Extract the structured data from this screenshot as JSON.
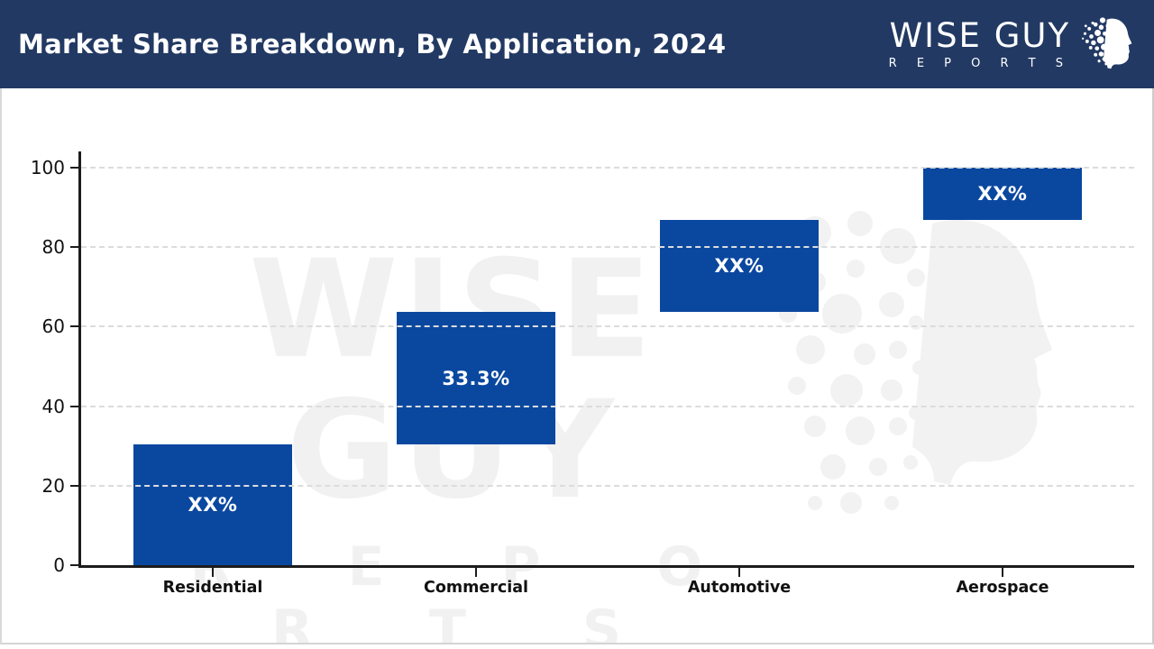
{
  "header": {
    "title": "Market Share Breakdown, By Application, 2024",
    "logo": {
      "line1": "WISE GUY",
      "line2": "R E P O R T S"
    }
  },
  "watermark": {
    "line1": "WISE GUY",
    "line2": "R E P O R T S"
  },
  "colors": {
    "header_bg": "#223963",
    "bar_fill": "#0a48a0",
    "bar_label_text": "#ffffff",
    "grid_line": "#dcdcdc",
    "axis_line": "#1c1c1c",
    "watermark": "#f1f1f1"
  },
  "chart_data": {
    "type": "bar",
    "subtype": "floating-waterfall",
    "title": "Market Share Breakdown, By Application, 2024",
    "categories": [
      "Residential",
      "Commercial",
      "Automotive",
      "Aerospace"
    ],
    "segments": [
      {
        "category": "Residential",
        "start": 0,
        "end": 30.4,
        "label": "XX%"
      },
      {
        "category": "Commercial",
        "start": 30.4,
        "end": 63.7,
        "label": "33.3%"
      },
      {
        "category": "Automotive",
        "start": 63.7,
        "end": 86.9,
        "label": "XX%"
      },
      {
        "category": "Aerospace",
        "start": 86.9,
        "end": 100,
        "label": "XX%"
      }
    ],
    "yticks": [
      0,
      20,
      40,
      60,
      80,
      100
    ],
    "ylim": [
      0,
      100
    ],
    "xlabel": "",
    "ylabel": "",
    "grid": "horizontal-dashed-above-bars",
    "legend": "none"
  }
}
